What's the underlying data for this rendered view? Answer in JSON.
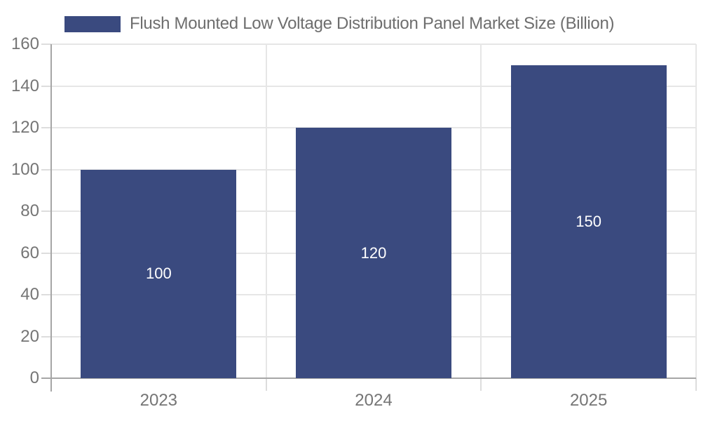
{
  "legend": {
    "label": "Flush Mounted Low Voltage Distribution Panel Market Size (Billion)"
  },
  "chart_data": {
    "type": "bar",
    "title": "Flush Mounted Low Voltage Distribution Panel Market Size (Billion)",
    "categories": [
      "2023",
      "2024",
      "2025"
    ],
    "values": [
      100,
      120,
      150
    ],
    "data_labels": [
      "100",
      "120",
      "150"
    ],
    "xlabel": "",
    "ylabel": "",
    "ylim": [
      0,
      160
    ],
    "yticks": [
      0,
      20,
      40,
      60,
      80,
      100,
      120,
      140,
      160
    ],
    "grid": true,
    "legend_position": "top",
    "bar_color": "#3A4A7F",
    "bar_label_color": "#FFFFFF"
  },
  "colors": {
    "background": "#FFFFFF",
    "grid": "#E6E6E6",
    "axis": "#A6A6A6",
    "tick": "#DDDDDD",
    "tick_text": "#757575",
    "legend_text": "#6E6E6E"
  }
}
